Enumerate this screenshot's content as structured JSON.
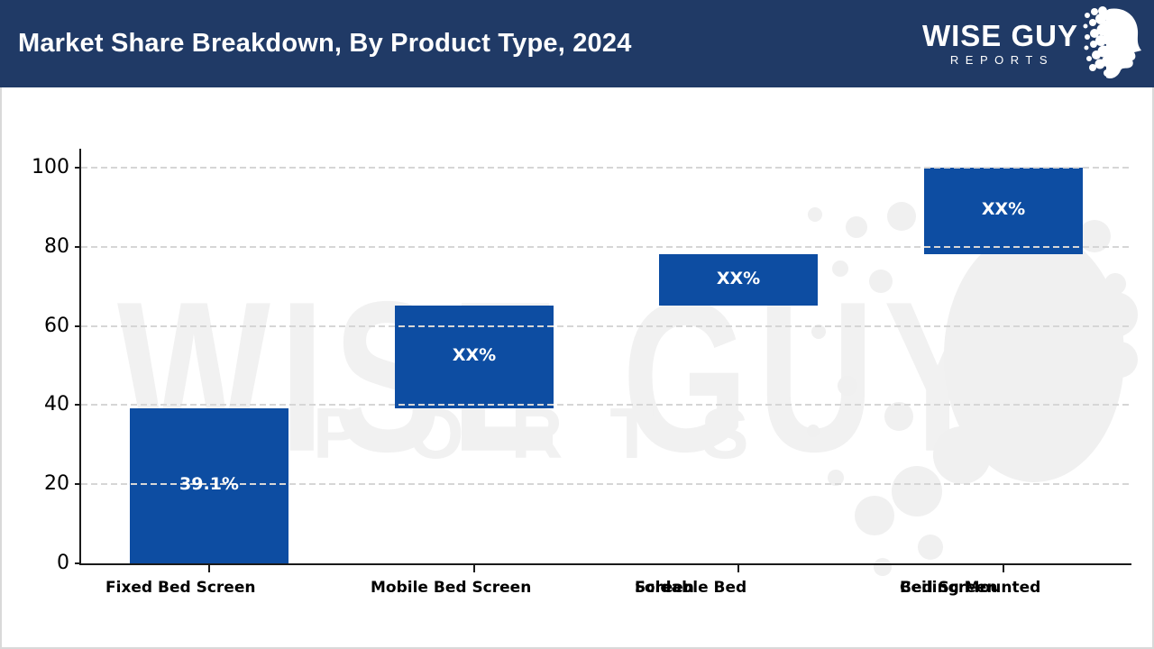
{
  "header": {
    "title": "Market Share Breakdown, By Product Type, 2024",
    "logo": {
      "name": "WISE GUY",
      "subname": "REPORTS"
    }
  },
  "watermark": {
    "line1": "WISE GUY",
    "line2": "PORTS"
  },
  "chart_data": {
    "type": "bar",
    "subtype": "waterfall",
    "title": "Market Share Breakdown, By Product Type, 2024",
    "categories": [
      "Fixed Bed Screen",
      "Mobile Bed Screen",
      "Foldable Bed Screen",
      "Ceiling Mounted Bed Screen"
    ],
    "category_lines": [
      [
        "Fixed Bed Screen"
      ],
      [
        "Mobile Bed Screen"
      ],
      [
        "Foldable Bed",
        "Screen"
      ],
      [
        "Ceiling Mounted",
        "Bed Screen"
      ]
    ],
    "series": [
      {
        "name": "Market Share (%)",
        "segments": [
          {
            "category": "Fixed Bed Screen",
            "start": 0,
            "end": 39.1,
            "label": "39.1%"
          },
          {
            "category": "Mobile Bed Screen",
            "start": 39.1,
            "end": 65.1,
            "label": "XX%"
          },
          {
            "category": "Foldable Bed Screen",
            "start": 65.1,
            "end": 78.1,
            "label": "XX%"
          },
          {
            "category": "Ceiling Mounted Bed Screen",
            "start": 78.1,
            "end": 100,
            "label": "XX%"
          }
        ]
      }
    ],
    "yticks": [
      0,
      20,
      40,
      60,
      80,
      100
    ],
    "ylim": [
      0,
      100
    ],
    "xlabel": "",
    "ylabel": "",
    "grid": "horizontal-dashed",
    "legend": "none",
    "bar_color": "#0d4da2",
    "bar_label_color": "#ffffff"
  },
  "colors": {
    "header_bg": "#203a66",
    "header_text": "#ffffff",
    "bar": "#0d4da2",
    "grid": "#d6d6d6",
    "axis": "#1a1a1a",
    "watermark": "#f1f1f1",
    "page_border": "#d9d9d9",
    "tick_text": "#000000"
  }
}
